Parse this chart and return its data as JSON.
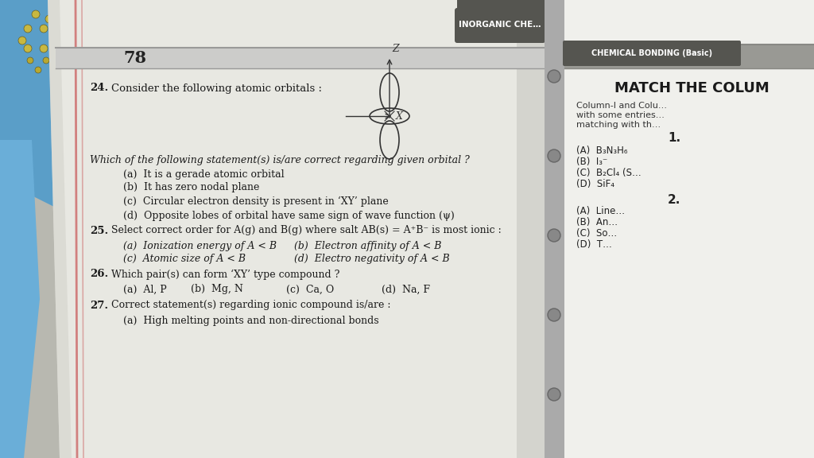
{
  "bg_color": "#b8b8b0",
  "left_page_color": "#e8e8e2",
  "left_page_shadow": "#d0d0c8",
  "right_page_color": "#eeeeea",
  "fabric_blue": "#5a9ec8",
  "fabric_yellow": "#c8b840",
  "notebook_tan": "#c8c0a8",
  "header_strip_left": "#888880",
  "header_strip_right": "#777770",
  "inorganic_label": "INORGANIC CHE…",
  "chemical_bonding_label": "CHEMICAL BONDING (Basic)",
  "page_number": "78",
  "match_title": "MATCH THE COLUM",
  "q24_label": "24.",
  "q24_text": "Consider the following atomic orbitals :",
  "q24_which": "Which of the following statement(s) is/are correct regarding given orbital ?",
  "q24a": "(a)  It is a gerade atomic orbital",
  "q24b": "(b)  It has zero nodal plane",
  "q24c": "(c)  Circular electron density is present in ‘XY’ plane",
  "q24d": "(d)  Opposite lobes of orbital have same sign of wave function (ψ)",
  "q25_label": "25.",
  "q25_text": "Select correct order for A(g) and B(g) where salt AB(s) = A⁺B⁻ is most ionic :",
  "q25a": "(a)  Ionization energy of A < B",
  "q25b": "(b)  Electron affinity of A < B",
  "q25c": "(c)  Atomic size of A < B",
  "q25d": "(d)  Electro negativity of A < B",
  "q26_label": "26.",
  "q26_text": "Which pair(s) can form ‘XY’ type compound ?",
  "q26a": "(a)  Al, P",
  "q26b": "(b)  Mg, N",
  "q26c": "(c)  Ca, O",
  "q26d": "(d)  Na, F",
  "q27_label": "27.",
  "q27_text": "Correct statement(s) regarding ionic compound is/are :",
  "q27a": "(a)  High melting points and non-directional bonds",
  "col1_sub1": "Column-I and Colu…",
  "col1_sub2": "with some entries…",
  "col1_sub3": "matching with th…",
  "r1_num": "1.",
  "r1a": "(A)  B₃N₃H₆",
  "r1b": "(B)  I₃⁻",
  "r1c": "(C)  B₂Cl₄ (S…",
  "r1d": "(D)  SiF₄",
  "r2_num": "2.",
  "r2a": "(A)  Line…",
  "r2b": "(B)  An…",
  "r2c": "(C)  So…",
  "r2d": "(D)  T…"
}
